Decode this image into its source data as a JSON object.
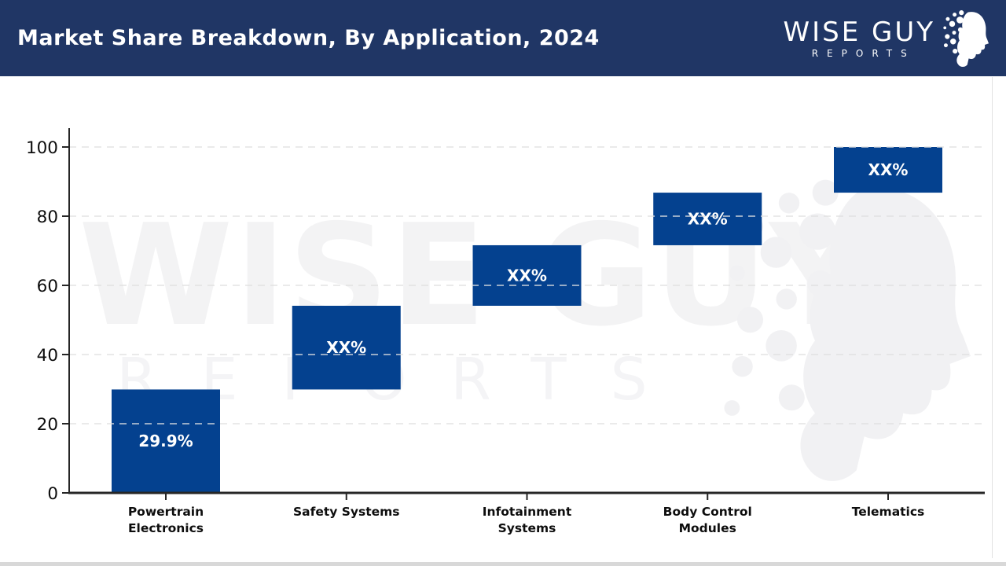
{
  "header": {
    "title": "Market Share Breakdown, By Application, 2024",
    "brand": {
      "line1": "WISE GUY",
      "line2": "REPORTS"
    }
  },
  "watermark": {
    "line1": "WISE GUY",
    "line2": "REPORTS"
  },
  "colors": {
    "header_bg": "#203665",
    "bar": "#04418f",
    "bar_label": "#ffffff",
    "grid": "#e0e0e0",
    "axis": "#262626",
    "tick_label": "#0d0d0d",
    "watermark": "#f2f2f3"
  },
  "chart_data": {
    "type": "waterfall",
    "title": "Market Share Breakdown, By Application, 2024",
    "categories": [
      [
        "Powertrain",
        "Electronics"
      ],
      [
        "Safety Systems"
      ],
      [
        "Infotainment",
        "Systems"
      ],
      [
        "Body Control",
        "Modules"
      ],
      [
        "Telematics"
      ]
    ],
    "segments": [
      {
        "label": "29.9%",
        "start": 0,
        "end": 29.9
      },
      {
        "label": "XX%",
        "start": 29.9,
        "end": 54.1
      },
      {
        "label": "XX%",
        "start": 54.1,
        "end": 71.6
      },
      {
        "label": "XX%",
        "start": 71.6,
        "end": 86.8
      },
      {
        "label": "XX%",
        "start": 86.8,
        "end": 100
      }
    ],
    "xlabel": "",
    "ylabel": "",
    "ylim": [
      0,
      100
    ],
    "yticks": [
      0,
      20,
      40,
      60,
      80,
      100
    ],
    "grid": "dashed-horizontal",
    "legend": "none"
  }
}
